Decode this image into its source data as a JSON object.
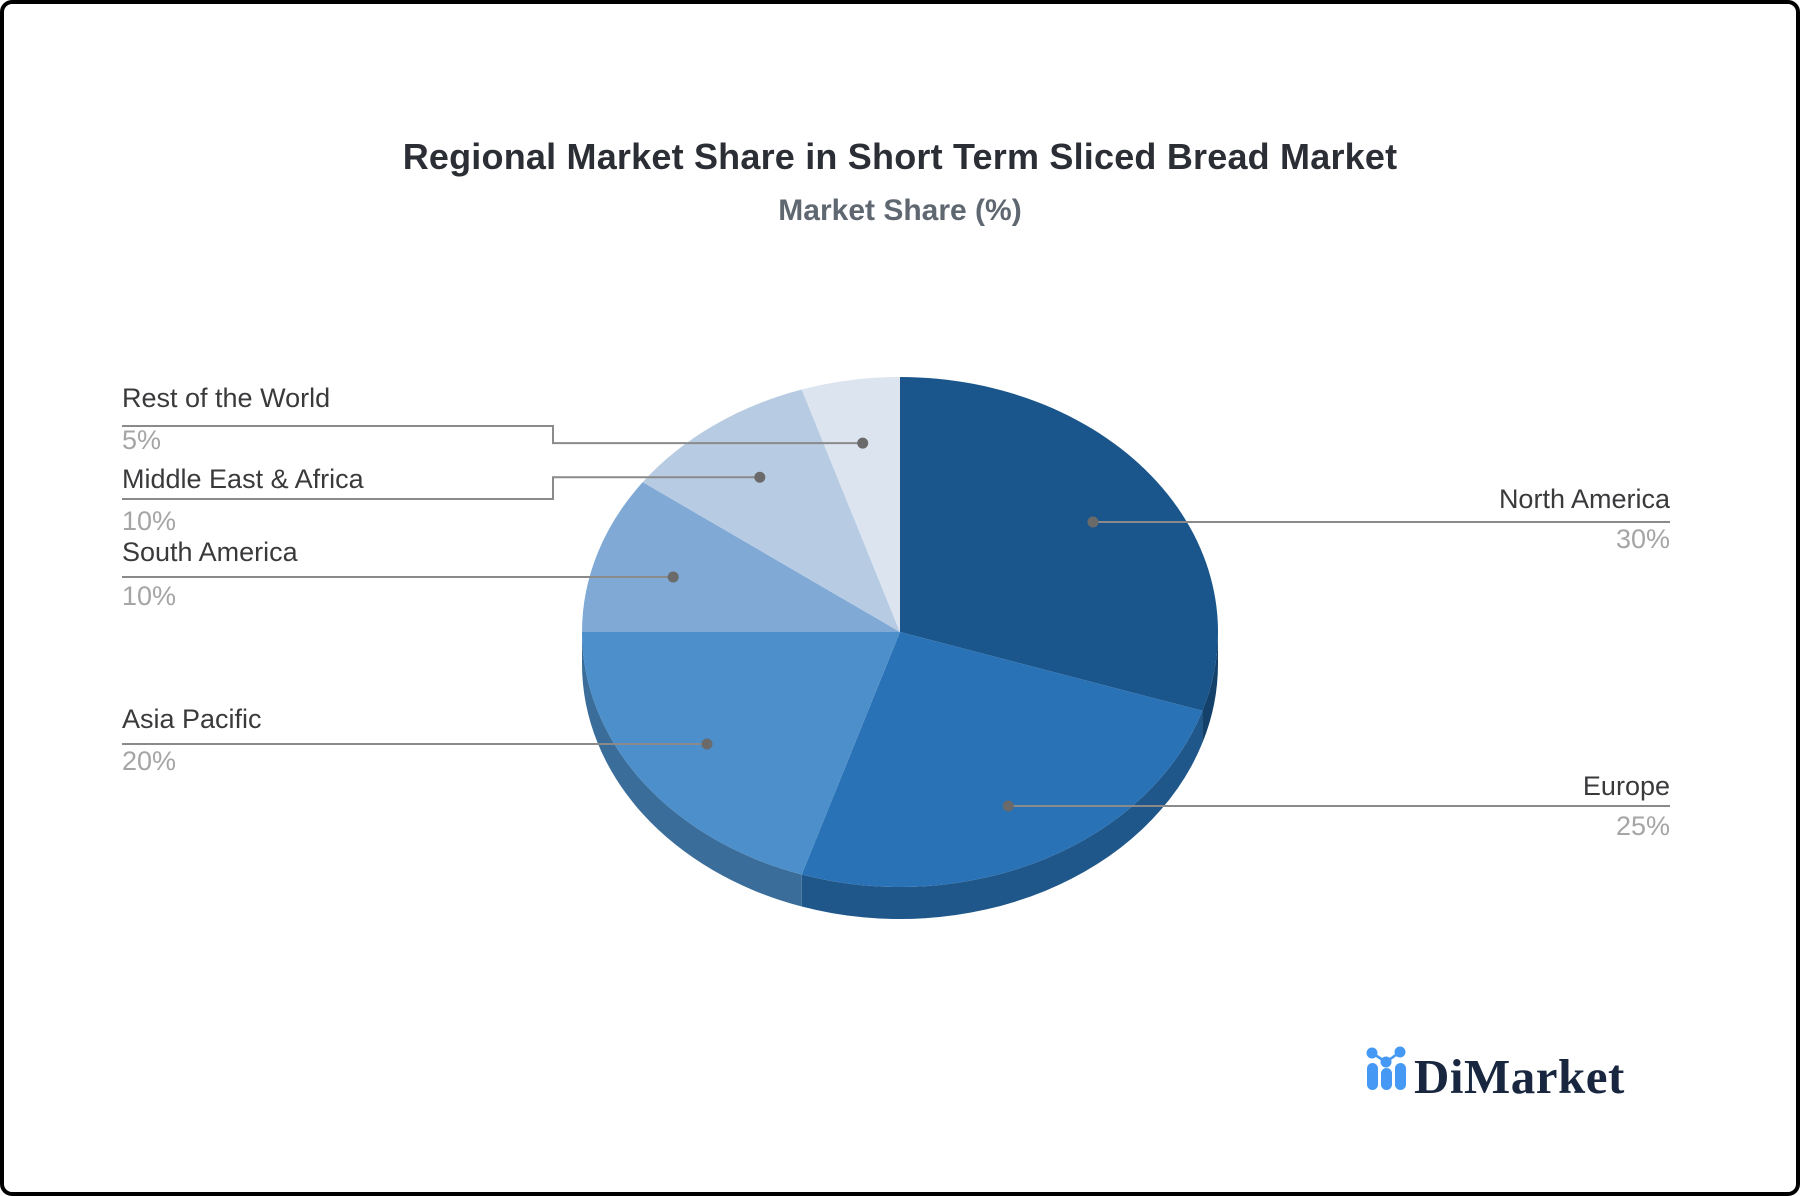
{
  "title": "Regional Market Share in Short Term Sliced Bread Market",
  "subtitle": "Market Share (%)",
  "watermark": {
    "brand": "DiMarket"
  },
  "chart_data": {
    "type": "pie",
    "style": "pie-3d",
    "title": "Regional Market Share in Short Term Sliced Bread Market",
    "subtitle": "Market Share (%)",
    "unit": "%",
    "direction": "clockwise",
    "start_angle": "top",
    "legend_position": "callout-labels",
    "segments": [
      {
        "label": "North America",
        "value": 30,
        "display": "30%",
        "color": "#1a568c",
        "label_side": "right"
      },
      {
        "label": "Europe",
        "value": 25,
        "display": "25%",
        "color": "#2a72b6",
        "label_side": "right"
      },
      {
        "label": "Asia Pacific",
        "value": 20,
        "display": "20%",
        "color": "#4c8fcb",
        "label_side": "left"
      },
      {
        "label": "South America",
        "value": 10,
        "display": "10%",
        "color": "#80aad5",
        "label_side": "left"
      },
      {
        "label": "Middle East & Africa",
        "value": 10,
        "display": "10%",
        "color": "#b7cce3",
        "label_side": "left"
      },
      {
        "label": "Rest of the World",
        "value": 5,
        "display": "5%",
        "color": "#dce4f0",
        "label_side": "left"
      }
    ],
    "callout_line_color": "#8a8a8a",
    "callout_dot_color": "#6a6a6a",
    "label_text_color": "#3a3a3c",
    "percent_text_color": "#a5a5a5",
    "brand_accent_color": "#4599f5"
  }
}
